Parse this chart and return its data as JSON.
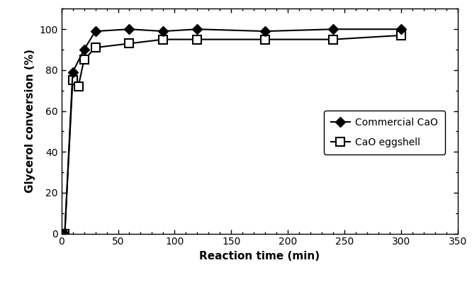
{
  "commercial_cao_x": [
    0,
    3,
    10,
    20,
    30,
    60,
    90,
    120,
    180,
    240,
    300
  ],
  "commercial_cao_y": [
    0,
    0,
    79,
    90,
    99,
    100,
    99,
    100,
    99,
    100,
    100
  ],
  "cao_eggshell_x": [
    0,
    3,
    10,
    15,
    20,
    30,
    60,
    90,
    120,
    180,
    240,
    300
  ],
  "cao_eggshell_y": [
    0,
    0,
    75,
    72,
    85,
    91,
    93,
    95,
    95,
    95,
    95,
    97
  ],
  "xlabel": "Reaction time (min)",
  "ylabel": "Glycerol conversion (%)",
  "xlim": [
    0,
    350
  ],
  "ylim": [
    0,
    110
  ],
  "xticks": [
    0,
    50,
    100,
    150,
    200,
    250,
    300,
    350
  ],
  "yticks": [
    0,
    20,
    40,
    60,
    80,
    100
  ],
  "legend_labels": [
    "Commercial CaO",
    "CaO eggshell"
  ],
  "line_color": "#000000",
  "background_color": "#ffffff",
  "label_fontsize": 11,
  "tick_fontsize": 10,
  "legend_fontsize": 10,
  "marker_size_diamond": 7,
  "marker_size_square": 8,
  "linewidth": 1.5
}
